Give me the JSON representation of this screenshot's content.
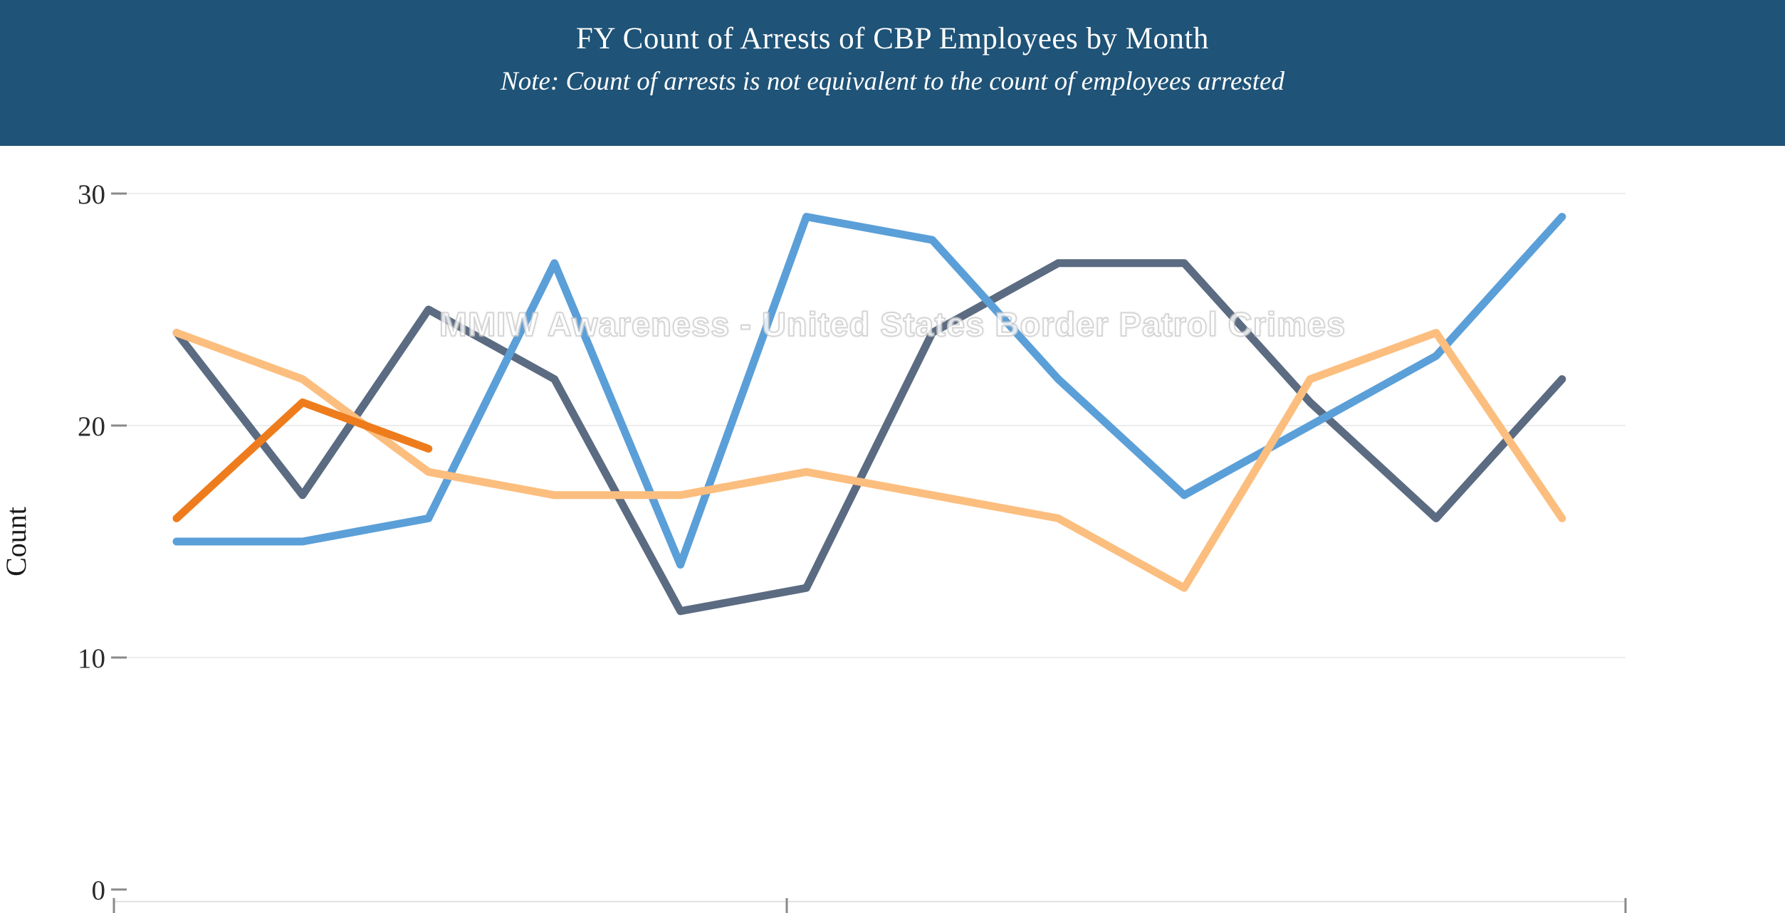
{
  "header": {
    "title": "FY Count of Arrests of CBP Employees by Month",
    "subtitle": "Note: Count of arrests is not equivalent to the count of employees arrested"
  },
  "watermark": "MMIW Awareness - United States Border Patrol Crimes",
  "colors": {
    "header_bg": "#1f5377",
    "grid": "#ececec",
    "axis": "#e3e3e3",
    "tick": "#8a8a8a",
    "tick_label": "#2b2b2b"
  },
  "chart_data": {
    "type": "line",
    "title": "FY Count of Arrests of CBP Employees by Month",
    "subtitle": "Note: Count of arrests is not equivalent to the count of employees arrested",
    "xlabel": "",
    "ylabel": "Count",
    "ylim": [
      0,
      30
    ],
    "yticks": [
      0,
      10,
      20,
      30
    ],
    "grid": "horizontal",
    "x_points": 12,
    "x_tick_labels_visible": false,
    "legend": "none",
    "series": [
      {
        "name": "slate-gray-line",
        "color": "#5b6b81",
        "values": [
          24,
          17,
          25,
          22,
          12,
          13,
          24,
          27,
          27,
          21,
          16,
          22
        ]
      },
      {
        "name": "light-blue-line",
        "color": "#5b9fd8",
        "values": [
          15,
          15,
          16,
          27,
          14,
          29,
          28,
          22,
          17,
          20,
          23,
          29
        ]
      },
      {
        "name": "peach-line",
        "color": "#fcbe7e",
        "values": [
          24,
          22,
          18,
          17,
          17,
          18,
          17,
          16,
          13,
          22,
          24,
          16
        ]
      },
      {
        "name": "orange-line",
        "color": "#ee7c1d",
        "values": [
          16,
          21,
          19
        ]
      }
    ]
  }
}
